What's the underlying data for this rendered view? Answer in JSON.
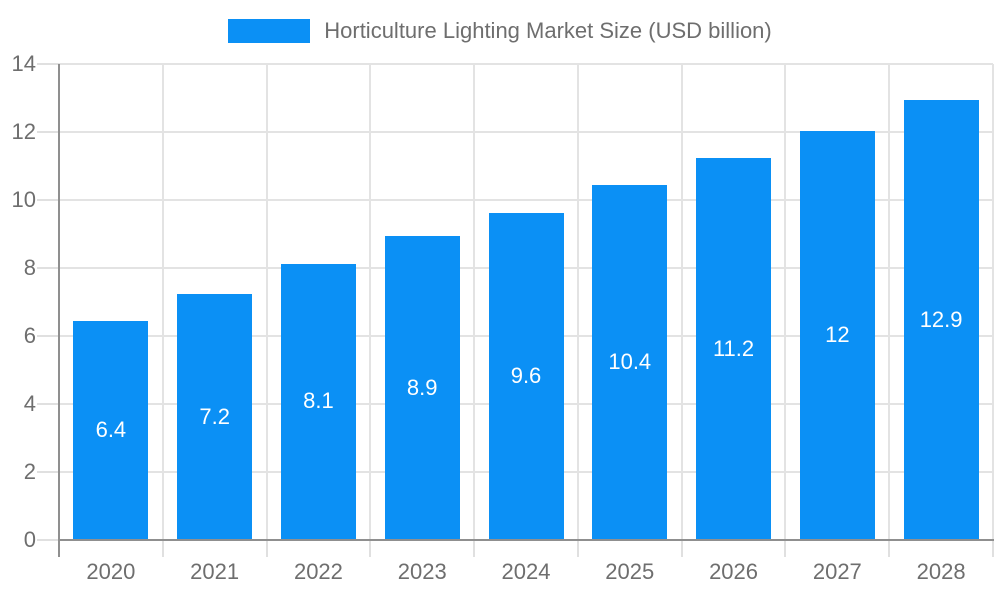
{
  "chart_data": {
    "type": "bar",
    "title": "Horticulture Lighting Market Size (USD billion)",
    "categories": [
      "2020",
      "2021",
      "2022",
      "2023",
      "2024",
      "2025",
      "2026",
      "2027",
      "2028"
    ],
    "values": [
      6.4,
      7.2,
      8.1,
      8.9,
      9.6,
      10.4,
      11.2,
      12,
      12.9
    ],
    "value_labels": [
      "6.4",
      "7.2",
      "8.1",
      "8.9",
      "9.6",
      "10.4",
      "11.2",
      "12",
      "12.9"
    ],
    "xlabel": "",
    "ylabel": "",
    "ylim": [
      0,
      14
    ],
    "yticks": [
      0,
      2,
      4,
      6,
      8,
      10,
      12,
      14
    ],
    "grid": true,
    "legend_position": "top-center",
    "value_labels_inside_bars": true,
    "colors": {
      "bar": "#0b90f5",
      "grid": "#e3e3e3",
      "tick": "#e0e0e0",
      "axis": "#8f8f8f",
      "axis_text": "#6e6e6e",
      "value_label_text": "#ffffff",
      "background": "#ffffff"
    }
  },
  "legend": {
    "label": "Horticulture Lighting Market Size (USD billion)",
    "swatch_color": "#0b90f5"
  }
}
